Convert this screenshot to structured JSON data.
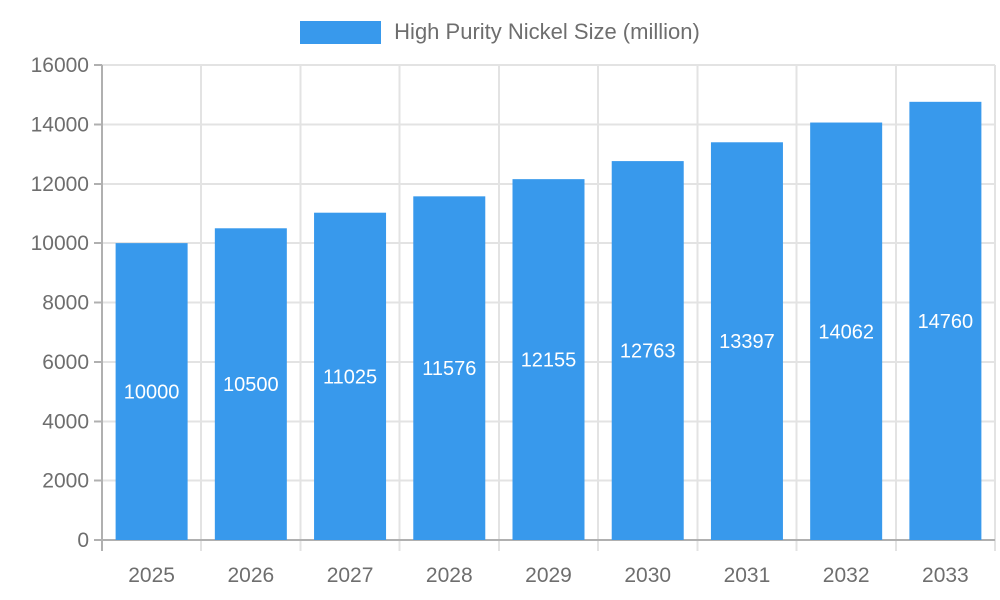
{
  "chart_data": {
    "type": "bar",
    "title": "High Purity Nickel Size (million)",
    "categories": [
      "2025",
      "2026",
      "2027",
      "2028",
      "2029",
      "2030",
      "2031",
      "2032",
      "2033"
    ],
    "values": [
      10000,
      10500,
      11025,
      11576,
      12155,
      12763,
      13397,
      14062,
      14760
    ],
    "xlabel": "",
    "ylabel": "",
    "ylim": [
      0,
      16000
    ],
    "y_ticks": [
      0,
      2000,
      4000,
      6000,
      8000,
      10000,
      12000,
      14000,
      16000
    ],
    "grid": true,
    "legend_position": "top-center",
    "bar_label_position": "center-inside",
    "colors": {
      "bar": "#3899ec",
      "bar_label": "#ffffff",
      "axis_text": "#6e6e6e",
      "grid_line": "#e3e3e3",
      "axis_line": "#b0b0b0"
    }
  },
  "legend": {
    "items": [
      {
        "label": "High Purity Nickel Size (million)",
        "color": "#3899ec"
      }
    ]
  }
}
